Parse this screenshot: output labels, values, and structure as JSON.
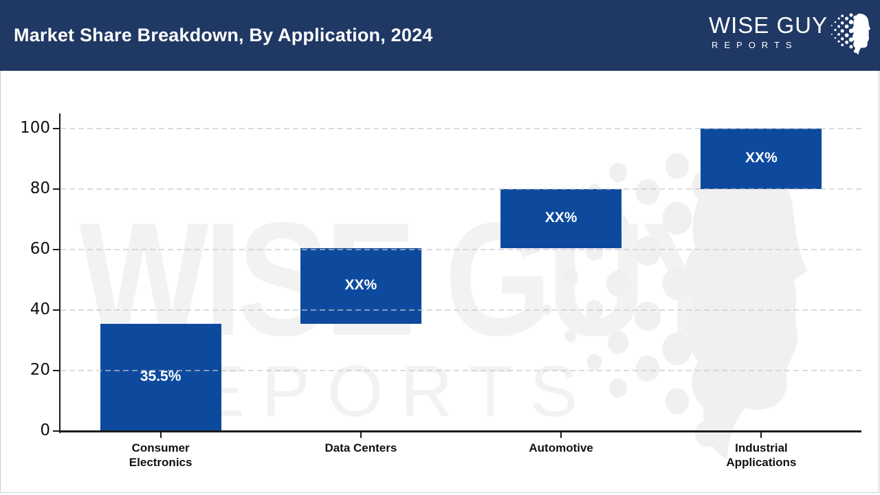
{
  "header": {
    "title": "Market Share Breakdown, By Application, 2024",
    "background_color": "#1f3864",
    "brand": {
      "line1": "WISE GUY",
      "line2": "REPORTS"
    }
  },
  "watermark": {
    "line1": "WISE GUY",
    "line2": "REPORTS"
  },
  "chart_data": {
    "type": "bar",
    "subtype": "waterfall",
    "title": "Market Share Breakdown, By Application, 2024",
    "xlabel": "",
    "ylabel": "",
    "ylim": [
      0,
      100
    ],
    "yticks": [
      0,
      20,
      40,
      60,
      80,
      100
    ],
    "grid": "horizontal-dashed",
    "legend": "none",
    "bar_color": "#0d4a9e",
    "value_label_color": "#ffffff",
    "categories": [
      "Consumer Electronics",
      "Data Centers",
      "Automotive",
      "Industrial Applications"
    ],
    "segments": [
      {
        "category": "Consumer Electronics",
        "start": 0,
        "end": 35.5,
        "label": "35.5%"
      },
      {
        "category": "Data Centers",
        "start": 35.5,
        "end": 60.5,
        "label": "XX%"
      },
      {
        "category": "Automotive",
        "start": 60.5,
        "end": 80,
        "label": "XX%"
      },
      {
        "category": "Industrial Applications",
        "start": 80,
        "end": 100,
        "label": "XX%"
      }
    ]
  }
}
